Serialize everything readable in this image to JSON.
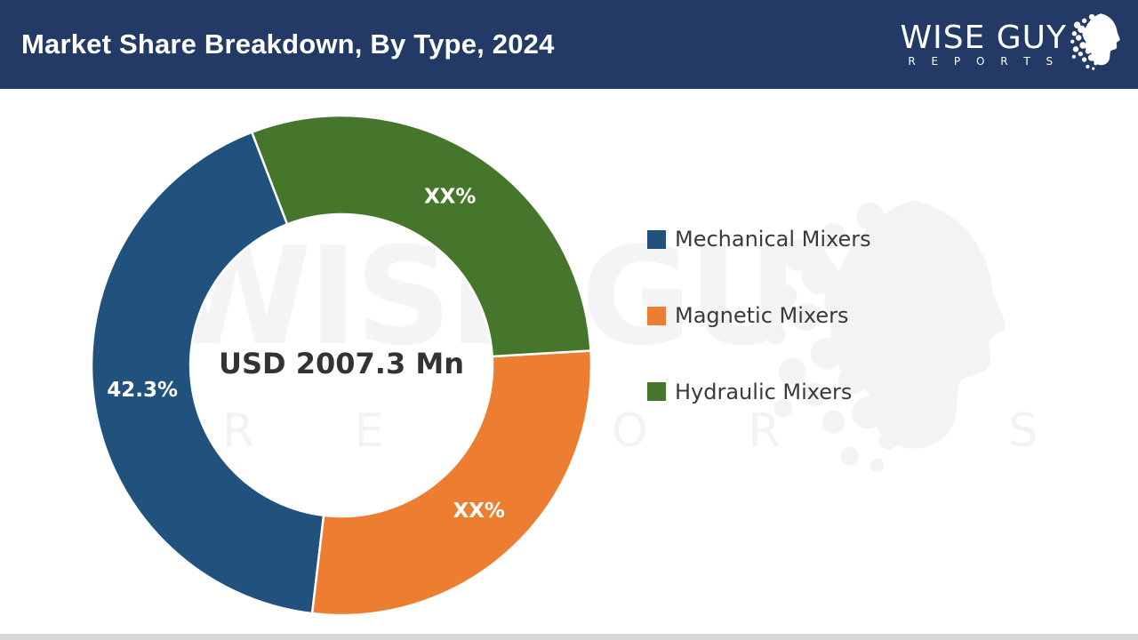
{
  "header": {
    "title": "Market Share Breakdown, By Type, 2024",
    "logo": {
      "brand_top": "WISE GUY",
      "brand_bottom": "R E P O R T S"
    }
  },
  "watermark": {
    "brand_top": "WISE GUY",
    "brand_bottom": "R E P O R T S"
  },
  "chart_data": {
    "type": "pie",
    "variant": "donut",
    "title": "Market Share Breakdown, By Type, 2024",
    "center_label": "USD 2007.3 Mn",
    "start_angle_deg": 111,
    "counterclockwise": true,
    "inner_radius_ratio": 0.605,
    "legend_position": "right",
    "segments": [
      {
        "name": "Mechanical Mixers",
        "value_pct": 42.3,
        "label": "42.3%",
        "color": "#21527D"
      },
      {
        "name": "Magnetic Mixers",
        "value_pct": 27.8,
        "label": "XX%",
        "color": "#ED7D31"
      },
      {
        "name": "Hydraulic Mixers",
        "value_pct": 29.9,
        "label": "XX%",
        "color": "#45762B"
      }
    ]
  },
  "colors": {
    "header_bg": "#233A66",
    "footer_bar": "#D9D9D9",
    "title_text": "#FFFFFF",
    "center_text": "#333333",
    "legend_text": "#3A3A3A",
    "slice_label_text": "#FFFFFF",
    "watermark": "#F4F4F6"
  }
}
